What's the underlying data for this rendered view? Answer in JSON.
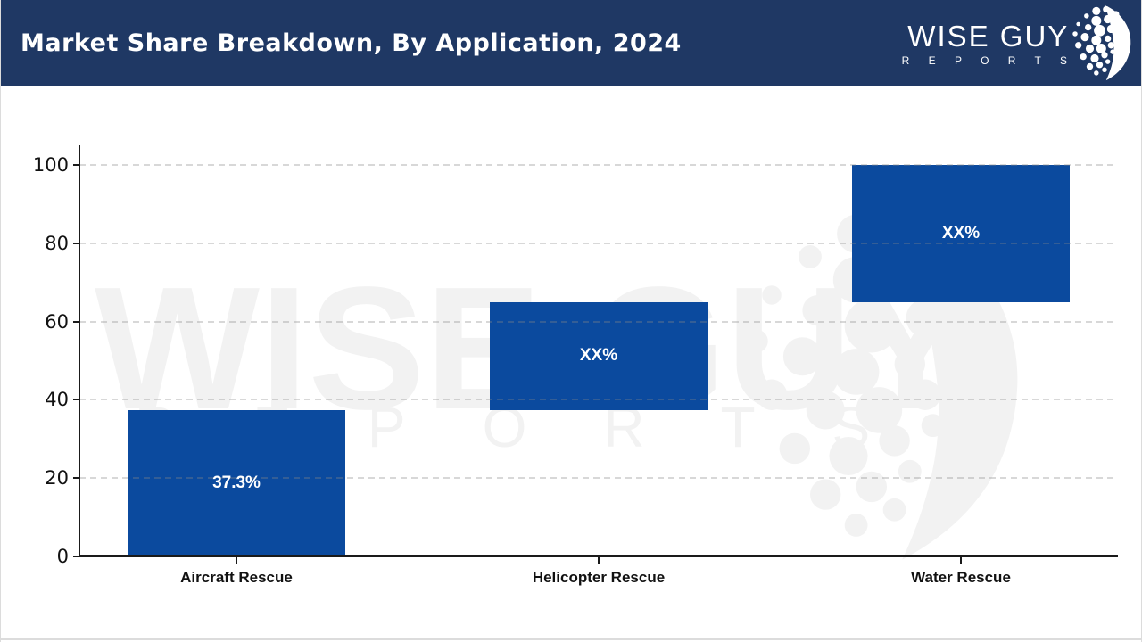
{
  "header": {
    "title": "Market Share Breakdown, By Application, 2024"
  },
  "logo": {
    "line1": "WISE GUY",
    "line2": "R E P O R T S"
  },
  "watermark": {
    "line1": "WISE GUY",
    "line2": "REPORTS"
  },
  "colors": {
    "header_background": "#1f3864",
    "bar_blue": "#0b4a9e",
    "watermark_gray": "#f2f2f2",
    "axis_black": "#1a1a1a",
    "bar_label_white": "#ffffff"
  },
  "chart_data": {
    "type": "bar",
    "subtype": "floating-segment-bars",
    "title": "Market Share Breakdown, By Application, 2024",
    "categories": [
      "Aircraft Rescue",
      "Helicopter Rescue",
      "Water Rescue"
    ],
    "bars": [
      {
        "category": "Aircraft Rescue",
        "start": 0,
        "end": 37.3,
        "label": "37.3%"
      },
      {
        "category": "Helicopter Rescue",
        "start": 37.3,
        "end": 65,
        "label": "XX%"
      },
      {
        "category": "Water Rescue",
        "start": 65,
        "end": 100,
        "label": "XX%"
      }
    ],
    "yticks": [
      0,
      20,
      40,
      60,
      80,
      100
    ],
    "ylim": [
      0,
      105
    ],
    "xlabel": "",
    "ylabel": "",
    "grid": "dashed-horizontal",
    "legend": "none",
    "bar_color": "#0b4a9e",
    "label_color": "#ffffff"
  }
}
